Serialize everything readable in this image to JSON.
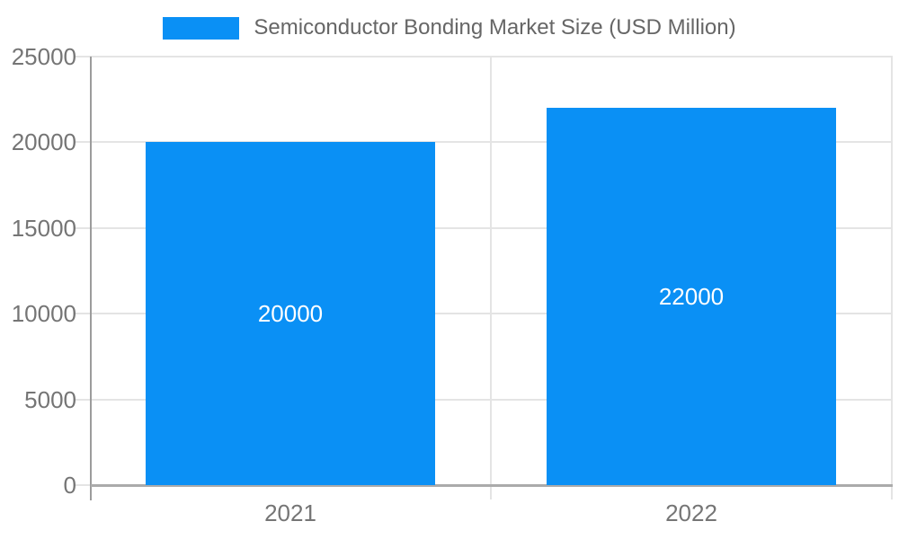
{
  "chart_data": {
    "type": "bar",
    "title": "Semiconductor Bonding Market Size (USD Million)",
    "legend": {
      "label": "Semiconductor Bonding Market Size (USD Million)",
      "position": "top-center"
    },
    "categories": [
      "2021",
      "2022"
    ],
    "series": [
      {
        "name": "Semiconductor Bonding Market Size (USD Million)",
        "values": [
          20000,
          22000
        ]
      }
    ],
    "values": [
      20000,
      22000
    ],
    "value_labels": [
      "20000",
      "22000"
    ],
    "xlabel": "",
    "ylabel": "",
    "ylim": [
      0,
      25000
    ],
    "yticks": [
      0,
      5000,
      10000,
      15000,
      20000,
      25000
    ],
    "ytick_labels": [
      "0",
      "5000",
      "10000",
      "15000",
      "20000",
      "25000"
    ],
    "grid": true,
    "colors": {
      "bar": "#0a90f5",
      "bar_label_text": "#ffffff",
      "axis_text": "#757575",
      "legend_text": "#666666",
      "gridline": "#e4e4e4",
      "y_axis_line": "#9c9c9c",
      "x_axis_line": "#ababab"
    }
  }
}
